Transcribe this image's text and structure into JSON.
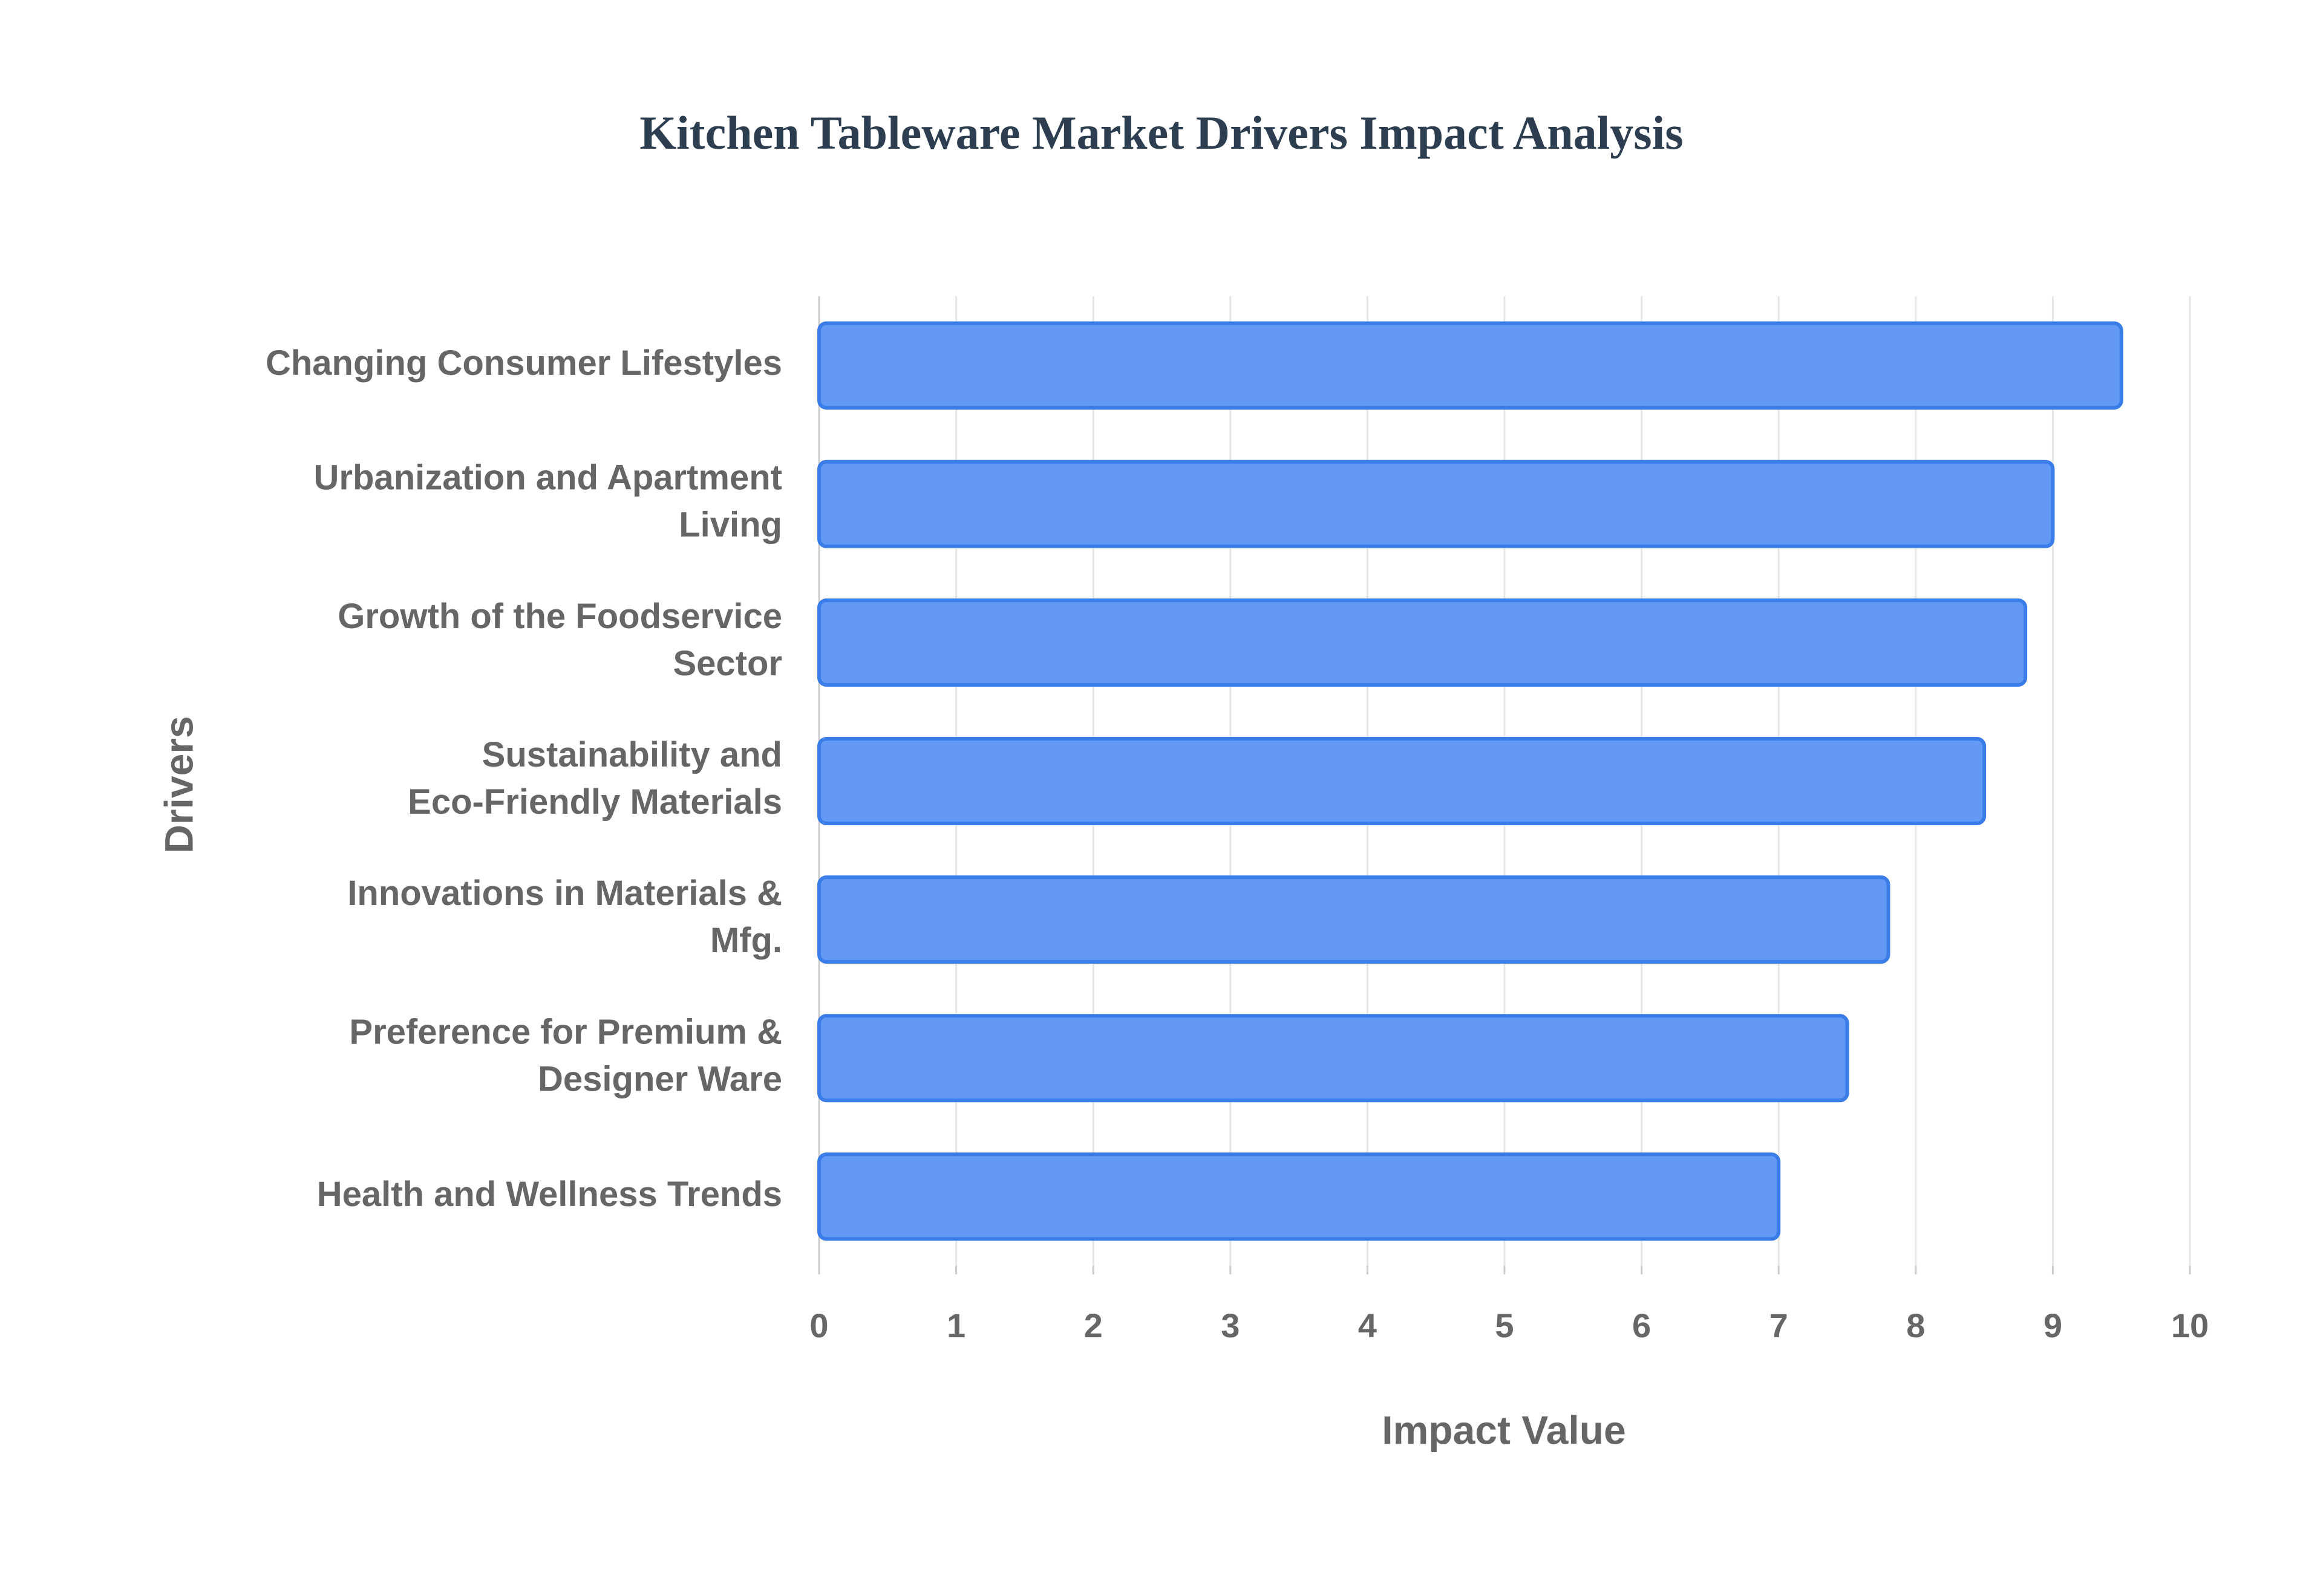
{
  "chart_data": {
    "type": "bar",
    "orientation": "horizontal",
    "title": "Kitchen Tableware Market Drivers Impact Analysis",
    "x_label": "Impact Value",
    "y_label": "Drivers",
    "categories": [
      "Changing Consumer Lifestyles",
      "Urbanization and Apartment\nLiving",
      "Growth of the Foodservice\nSector",
      "Sustainability and\nEco-Friendly Materials",
      "Innovations in Materials &\nMfg.",
      "Preference for Premium &\nDesigner Ware",
      "Health and Wellness Trends"
    ],
    "values": [
      9.5,
      9.0,
      8.8,
      8.5,
      7.8,
      7.5,
      7.0
    ],
    "color": "#6399f4",
    "edge_color": "#3a7ce8",
    "xlim": [
      0,
      10
    ],
    "xticks": [
      0,
      1,
      2,
      3,
      4,
      5,
      6,
      7,
      8,
      9,
      10
    ],
    "grid": true
  }
}
